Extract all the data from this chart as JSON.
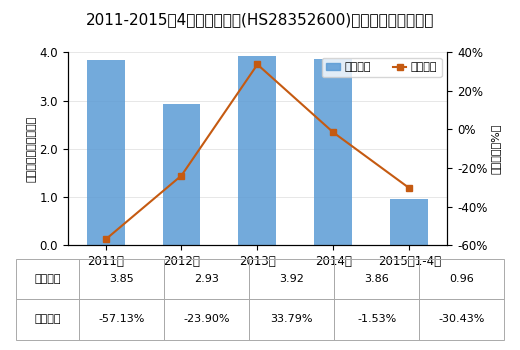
{
  "title": "2011-2015年4月其他磷酸钙(HS28352600)进口总额及增速统计",
  "categories": [
    "2011年",
    "2012年",
    "2013年",
    "2014年",
    "2015年1-4月"
  ],
  "bar_values": [
    3.85,
    2.93,
    3.92,
    3.86,
    0.96
  ],
  "line_values": [
    -57.13,
    -23.9,
    33.79,
    -1.53,
    -30.43
  ],
  "bar_color": "#5B9BD5",
  "line_color": "#C55A11",
  "ylabel_left": "进口金额（百万美元）",
  "ylabel_right": "同比增长（%）",
  "ylim_left": [
    0,
    4.0
  ],
  "ylim_right": [
    -60,
    40
  ],
  "yticks_left": [
    0.0,
    1.0,
    2.0,
    3.0,
    4.0
  ],
  "yticks_right": [
    -60,
    -40,
    -20,
    0,
    20,
    40
  ],
  "legend_labels": [
    "进口金额",
    "同比增长"
  ],
  "table_row1_label": "进口金额",
  "table_row2_label": "同比增长",
  "table_row1_values": [
    "3.85",
    "2.93",
    "3.92",
    "3.86",
    "0.96"
  ],
  "table_row2_values": [
    "-57.13%",
    "-23.90%",
    "33.79%",
    "-1.53%",
    "-30.43%"
  ],
  "background_color": "#ffffff",
  "title_fontsize": 11,
  "axis_fontsize": 8.5,
  "table_fontsize": 8
}
